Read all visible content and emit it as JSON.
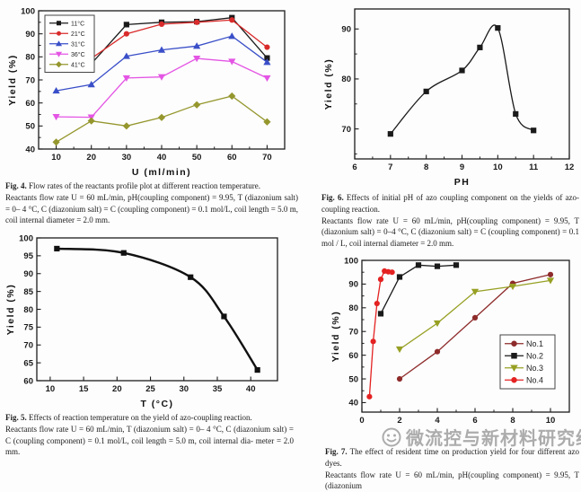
{
  "watermark": {
    "text": "微流控与新材料研究组",
    "logo": "smiley-icon",
    "color": "#9f9f9f"
  },
  "figures": {
    "fig4": {
      "caption_label": "Fig. 4.",
      "caption_title": "Flow rates of the reactants profile plot at different reaction temperature.",
      "caption_details": "Reactants flow rate U = 60 mL/min, pH(coupling component) = 9.95, T (diazonium salt) = 0– 4 °C, C (diazonium salt) = C (coupling component) = 0.1 mol/L, coil length = 5.0 m, coil internal diameter = 2.0 mm."
    },
    "fig6": {
      "caption_label": "Fig. 6.",
      "caption_title": "Effects of initial pH of azo coupling component on the yields of azo-coupling reaction.",
      "caption_details": "Reactants flow rate U = 60 mL/min, pH(coupling component) = 9.95, T (diazonium salt) = 0–4 °C, C (diazonium salt) = C (coupling component) = 0.1 mol / L, coil internal diameter = 2.0 mm."
    },
    "fig5": {
      "caption_label": "Fig. 5.",
      "caption_title": "Effects of reaction temperature on the yield of azo-coupling reaction.",
      "caption_details": "Reactants flow rate U = 60 mL/min, T (diazonium salt) = 0– 4 °C, C (diazonium salt) = C (coupling component) = 0.1 mol/L, coil length = 5.0 m, coil internal dia- meter = 2.0 mm."
    },
    "fig7": {
      "caption_label": "Fig. 7.",
      "caption_title": "The effect of resident time on production yield for four different azo dyes.",
      "caption_details": "Reactants flow rate U = 60 mL/min, pH(coupling component) = 9.95, T (diazonium"
    }
  },
  "chart_data": [
    {
      "id": "fig4-plot",
      "type": "line",
      "title": "",
      "xlabel": "U  (ml/min)",
      "ylabel": "Yield (%)",
      "xlim": [
        5,
        75
      ],
      "ylim": [
        40,
        100
      ],
      "xticks": [
        10,
        20,
        30,
        40,
        50,
        60,
        70
      ],
      "xminor": [
        15,
        25,
        35,
        45,
        55,
        65
      ],
      "yticks": [
        40,
        50,
        60,
        70,
        80,
        90,
        100
      ],
      "yminor": [
        45,
        55,
        65,
        75,
        85,
        95
      ],
      "grid": false,
      "x": [
        10,
        20,
        30,
        40,
        50,
        60,
        70
      ],
      "series": [
        {
          "name": "11°C",
          "color": "#1a1a1a",
          "marker": "square",
          "values": [
            78,
            77,
            94,
            95,
            95.3,
            97,
            79.5
          ]
        },
        {
          "name": "21°C",
          "color": "#d92b2b",
          "marker": "circle",
          "values": [
            79.5,
            79.3,
            90,
            94.2,
            95,
            96,
            84.2
          ]
        },
        {
          "name": "31°C",
          "color": "#3a4fc8",
          "marker": "triangle-up",
          "values": [
            65.3,
            68,
            80.3,
            83,
            84.7,
            89,
            77.7
          ]
        },
        {
          "name": "36°C",
          "color": "#e455e4",
          "marker": "triangle-down",
          "values": [
            54,
            53.8,
            70.8,
            71.3,
            79.3,
            78,
            70.8
          ]
        },
        {
          "name": "41°C",
          "color": "#95972e",
          "marker": "diamond",
          "values": [
            43,
            52.2,
            50,
            53.7,
            59.2,
            63,
            51.8
          ]
        }
      ],
      "legend": {
        "position": "top-left",
        "font_size": 7
      }
    },
    {
      "id": "fig6-plot",
      "type": "line",
      "title": "",
      "xlabel": "PH",
      "ylabel": "Yield (%)",
      "xlim": [
        6,
        12
      ],
      "ylim": [
        64,
        94
      ],
      "xticks": [
        6,
        7,
        8,
        9,
        10,
        11,
        12
      ],
      "xminor": [
        6.5,
        7.5,
        8.5,
        9.5,
        10.5,
        11.5
      ],
      "yticks": [
        70,
        80,
        90
      ],
      "yminor": [
        65,
        75,
        85
      ],
      "grid": false,
      "x": [
        7,
        8,
        9,
        9.5,
        10,
        10.5,
        11
      ],
      "series": [
        {
          "name": "yield",
          "color": "#1a1a1a",
          "marker": "square",
          "smooth": true,
          "values": [
            69,
            77.5,
            81.7,
            86.3,
            90.2,
            73,
            69.7
          ]
        }
      ],
      "legend": null
    },
    {
      "id": "fig5-plot",
      "type": "line",
      "title": "",
      "xlabel": "T (°C)",
      "ylabel": "Yield (%)",
      "xlim": [
        8,
        44
      ],
      "ylim": [
        60,
        100
      ],
      "xticks": [
        10,
        15,
        20,
        25,
        30,
        35,
        40
      ],
      "xminor": [],
      "yticks": [
        60,
        65,
        70,
        75,
        80,
        85,
        90,
        95,
        100
      ],
      "yminor": [],
      "grid": false,
      "x": [
        11,
        21,
        31,
        36,
        41
      ],
      "series": [
        {
          "name": "yield",
          "color": "#111111",
          "marker": "square",
          "smooth": true,
          "line_width": 2.4,
          "values": [
            97,
            95.8,
            89,
            78,
            63
          ]
        }
      ],
      "legend": null
    },
    {
      "id": "fig7-plot",
      "type": "line",
      "title": "",
      "xlabel": "",
      "ylabel": "Yield (%)",
      "xlim": [
        0,
        11
      ],
      "ylim": [
        36,
        100
      ],
      "xticks": [
        0,
        2,
        4,
        6,
        8,
        10
      ],
      "xminor": [
        1,
        3,
        5,
        7,
        9,
        11
      ],
      "yticks": [
        40,
        50,
        60,
        70,
        80,
        90,
        100
      ],
      "yminor": [
        45,
        55,
        65,
        75,
        85,
        95
      ],
      "grid": false,
      "series": [
        {
          "name": "No.1",
          "color": "#8e2b2b",
          "marker": "circle",
          "x": [
            2,
            4,
            6,
            8,
            10
          ],
          "values": [
            50,
            61.5,
            75.8,
            90.3,
            94
          ]
        },
        {
          "name": "No.2",
          "color": "#1a1a1a",
          "marker": "square",
          "x": [
            1,
            2,
            3,
            4,
            5
          ],
          "values": [
            77.5,
            93,
            98,
            97.5,
            98
          ]
        },
        {
          "name": "No.3",
          "color": "#97a023",
          "marker": "triangle-down",
          "x": [
            2,
            4,
            6,
            8,
            10
          ],
          "values": [
            62.5,
            73.5,
            86.8,
            89,
            91.5
          ]
        },
        {
          "name": "No.4",
          "color": "#e42222",
          "marker": "circle",
          "x": [
            0.4,
            0.6,
            0.8,
            1.0,
            1.2,
            1.4,
            1.6
          ],
          "values": [
            42.5,
            65.8,
            81.8,
            92,
            95.5,
            95.2,
            95
          ]
        }
      ],
      "legend": {
        "position": "bottom-right",
        "font_size": 9
      }
    }
  ]
}
